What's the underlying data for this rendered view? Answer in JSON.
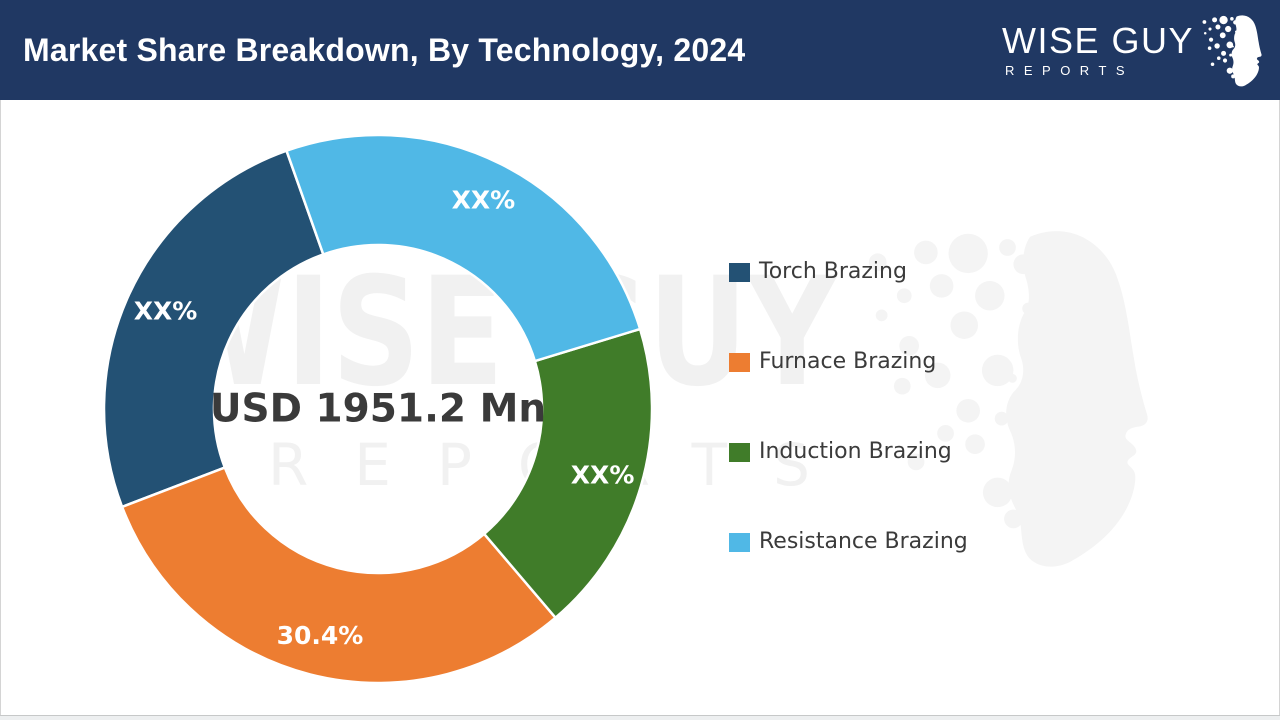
{
  "header": {
    "title": "Market Share Breakdown, By Technology, 2024",
    "bg_color": "#203863",
    "logo": {
      "line1": "WISE GUY",
      "line2": "REPORTS"
    }
  },
  "watermark": {
    "line1": "WISE GUY",
    "line2": "REPORTS"
  },
  "chart_data": {
    "type": "pie",
    "subtype": "donut",
    "title": "Market Share Breakdown, By Technology, 2024",
    "center_label": "USD 1951.2 Mn",
    "legend_position": "right",
    "direction": "counterclockwise",
    "start_angle_deg": 109.5,
    "inner_radius_ratio": 0.6,
    "categories": [
      "Torch Brazing",
      "Furnace Brazing",
      "Induction Brazing",
      "Resistance Brazing"
    ],
    "values": [
      25.4,
      30.4,
      18.5,
      25.7
    ],
    "display_labels": [
      "XX%",
      "30.4%",
      "XX%",
      "XX%"
    ],
    "colors": [
      "#235174",
      "#ED7D31",
      "#407C29",
      "#50B8E6"
    ],
    "label_color": "#FFFFFF",
    "center_label_color": "#3A3A3A"
  },
  "colors": {
    "header_bg": "#203863",
    "legend_text": "#3B3B3B",
    "watermark": "#F1F1F1",
    "footer_line": "#C6C8C8",
    "footer_bg": "#EDEFF0"
  }
}
